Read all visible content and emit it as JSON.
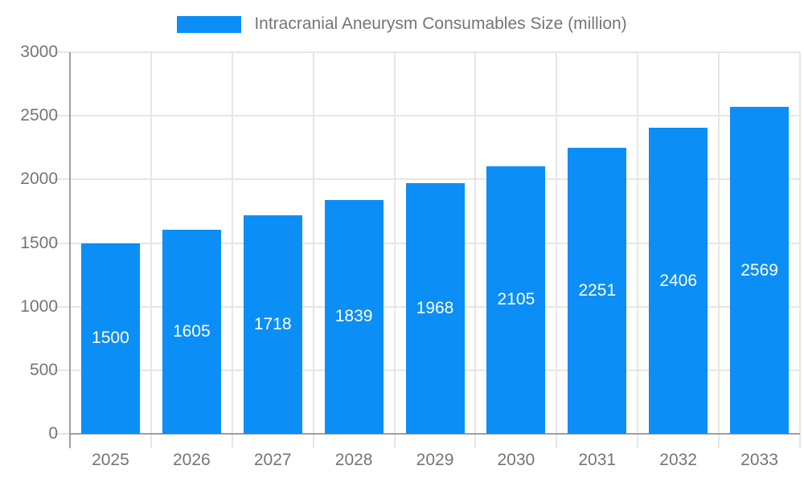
{
  "legend": {
    "series_label": "Intracranial Aneurysm Consumables Size (million)",
    "swatch_icon": "blue-rect-swatch"
  },
  "colors": {
    "bar": "#0b8ef5",
    "grid": "#e6e6e6",
    "axis": "#9e9e9e",
    "text": "#757575",
    "bar_label_text": "#ffffff",
    "background": "#ffffff"
  },
  "chart_data": {
    "type": "bar",
    "title": "Intracranial Aneurysm Consumables Size (million)",
    "categories": [
      "2025",
      "2026",
      "2027",
      "2028",
      "2029",
      "2030",
      "2031",
      "2032",
      "2033"
    ],
    "values": [
      1500,
      1605,
      1718,
      1839,
      1968,
      2105,
      2251,
      2406,
      2569
    ],
    "series": [
      {
        "name": "Intracranial Aneurysm Consumables Size (million)",
        "values": [
          1500,
          1605,
          1718,
          1839,
          1968,
          2105,
          2251,
          2406,
          2569
        ]
      }
    ],
    "xlabel": "",
    "ylabel": "",
    "ylim": [
      0,
      3000
    ],
    "yticks": [
      0,
      500,
      1000,
      1500,
      2000,
      2500,
      3000
    ],
    "grid": true,
    "legend_position": "top",
    "value_labels": "inside-center"
  }
}
